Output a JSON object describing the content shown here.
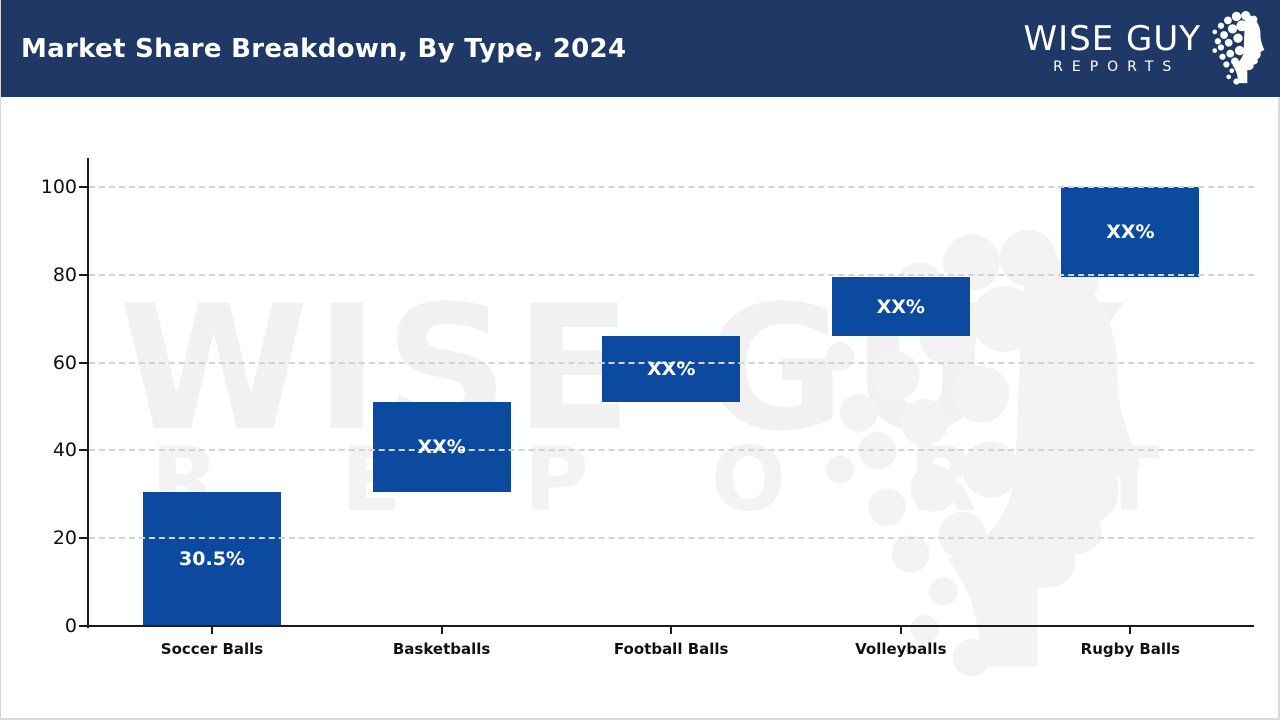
{
  "header": {
    "title": "Market Share Breakdown, By Type, 2024",
    "background": "#1f3866",
    "logo": {
      "primary": "WISE GUY",
      "secondary": "REPORTS"
    }
  },
  "watermark": {
    "line1": "WISE GUY",
    "line2": "R E P O R T S"
  },
  "chart_data": {
    "type": "bar",
    "subtype": "waterfall",
    "title": "Market Share Breakdown, By Type, 2024",
    "categories": [
      "Soccer Balls",
      "Basketballs",
      "Football Balls",
      "Volleyballs",
      "Rugby Balls"
    ],
    "bars": [
      {
        "category": "Soccer Balls",
        "start": 0,
        "end": 30.5,
        "label": "30.5%"
      },
      {
        "category": "Basketballs",
        "start": 30.5,
        "end": 51,
        "label": "XX%"
      },
      {
        "category": "Football Balls",
        "start": 51,
        "end": 66,
        "label": "XX%"
      },
      {
        "category": "Volleyballs",
        "start": 66,
        "end": 79.5,
        "label": "XX%"
      },
      {
        "category": "Rugby Balls",
        "start": 79.5,
        "end": 100,
        "label": "XX%"
      }
    ],
    "yticks": [
      0,
      20,
      40,
      60,
      80,
      100
    ],
    "ylim": [
      0,
      107
    ],
    "xlabel": "",
    "ylabel": "",
    "grid": true,
    "gridline_style": "dashed",
    "legend_position": "none",
    "bar_color": "#0b4a9e",
    "grid_color": "#d4d4d4",
    "axis_color": "#1c1c1c",
    "value_label_color": "#ffffff"
  }
}
